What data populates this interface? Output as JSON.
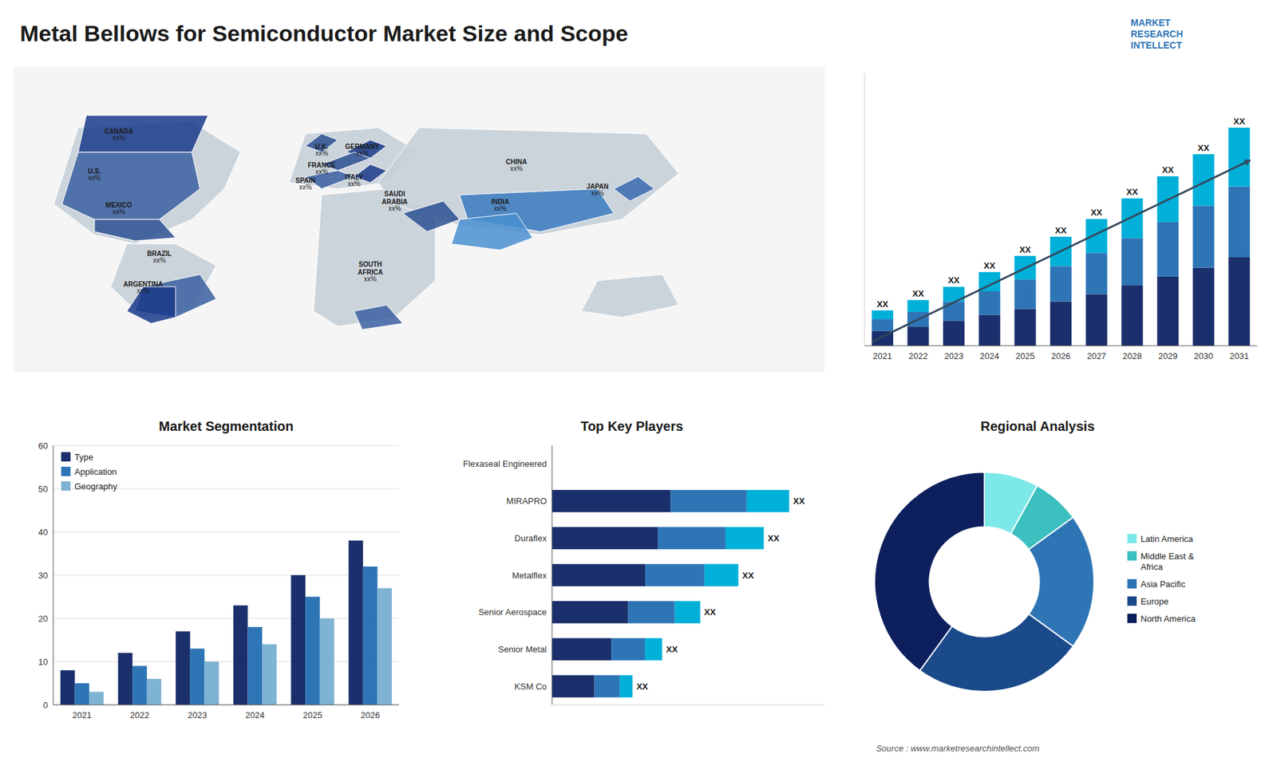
{
  "title": "Metal Bellows for Semiconductor Market Size and Scope",
  "annotations": [
    "MARKET\nRESEARCH\nINTELLECT",
    "Source : www.marketresearchintellect.com"
  ],
  "chart_data": [
    {
      "type": "map",
      "categories": [
        "CANADA",
        "U.S.",
        "MEXICO",
        "BRAZIL",
        "ARGENTINA",
        "U.K.",
        "FRANCE",
        "SPAIN",
        "GERMANY",
        "ITALY",
        "SAUDI\nARABIA",
        "SOUTH\nAFRICA",
        "CHINA",
        "JAPAN",
        "INDIA"
      ],
      "annotations": [
        "xx%",
        "xx%",
        "xx%",
        "xx%",
        "xx%",
        "xx%",
        "xx%",
        "xx%",
        "xx%",
        "xx%",
        "xx%",
        "xx%",
        "xx%",
        "xx%",
        "xx%"
      ]
    },
    {
      "type": "bar",
      "stacked": true,
      "tick_labels": "x",
      "categories": [
        "2021",
        "2022",
        "2023",
        "2024",
        "2025",
        "2026",
        "2027",
        "2028",
        "2029",
        "2030",
        "2031"
      ],
      "series": [
        {
          "color": "#1a2f6b",
          "values": [
            1,
            1.3,
            1.7,
            2.1,
            2.5,
            3.0,
            3.5,
            4.1,
            4.7,
            5.3,
            6.0
          ]
        },
        {
          "color": "#2e75b6",
          "values": [
            0.8,
            1.0,
            1.3,
            1.6,
            2.0,
            2.4,
            2.8,
            3.2,
            3.7,
            4.2,
            4.8
          ]
        },
        {
          "color": "#00b0d8",
          "values": [
            0.6,
            0.8,
            1.0,
            1.3,
            1.6,
            2.0,
            2.3,
            2.7,
            3.1,
            3.5,
            4.0
          ]
        }
      ],
      "annotations": [
        "XX",
        "XX",
        "XX",
        "XX",
        "XX",
        "XX",
        "XX",
        "XX",
        "XX",
        "XX",
        "XX"
      ],
      "ylim": [
        0,
        18.5
      ]
    },
    {
      "type": "bar",
      "title": "Market Segmentation",
      "categories": [
        "2021",
        "2022",
        "2023",
        "2024",
        "2025",
        "2026"
      ],
      "series": [
        {
          "name": "Type",
          "color": "#1a2f6b",
          "values": [
            8,
            12,
            17,
            23,
            30,
            38
          ]
        },
        {
          "name": "Application",
          "color": "#2e75b6",
          "values": [
            5,
            9,
            13,
            18,
            25,
            32
          ]
        },
        {
          "name": "Geography",
          "color": "#7fb3d3",
          "values": [
            3,
            6,
            10,
            14,
            20,
            27
          ]
        }
      ],
      "ylim": [
        0,
        60
      ],
      "yticks": [
        0,
        10,
        20,
        30,
        40,
        50,
        60
      ],
      "grid": true,
      "legend": "upper left"
    },
    {
      "type": "bar",
      "title": "Top Key Players",
      "orientation": "horizontal",
      "stacked": true,
      "tick_labels": "y",
      "categories": [
        "Flexaseal Engineered",
        "MIRAPRO",
        "Duraflex",
        "Metalflex",
        "Senior Aerospace",
        "Senior Metal",
        "KSM Co"
      ],
      "series": [
        {
          "color": "#1a2f6b",
          "values": [
            0,
            2.8,
            2.5,
            2.2,
            1.8,
            1.4,
            1.0
          ]
        },
        {
          "color": "#2e75b6",
          "values": [
            0,
            1.8,
            1.6,
            1.4,
            1.1,
            0.8,
            0.6
          ]
        },
        {
          "color": "#00b0d8",
          "values": [
            0,
            1.0,
            0.9,
            0.8,
            0.6,
            0.4,
            0.3
          ]
        }
      ],
      "annotations": [
        null,
        "XX",
        "XX",
        "XX",
        "XX",
        "XX",
        "XX"
      ],
      "xlim": [
        0,
        6.44
      ]
    },
    {
      "type": "donut",
      "title": "Regional Analysis",
      "categories": [
        "Latin America",
        "Middle East &\nAfrica",
        "Asia Pacific",
        "Europe",
        "North America"
      ],
      "values": [
        8,
        7,
        20,
        25,
        40
      ],
      "colors": [
        "#7de8e8",
        "#3bbfbf",
        "#2e75b6",
        "#1a4a8a",
        "#0d1f5c"
      ],
      "legend": "right"
    }
  ]
}
